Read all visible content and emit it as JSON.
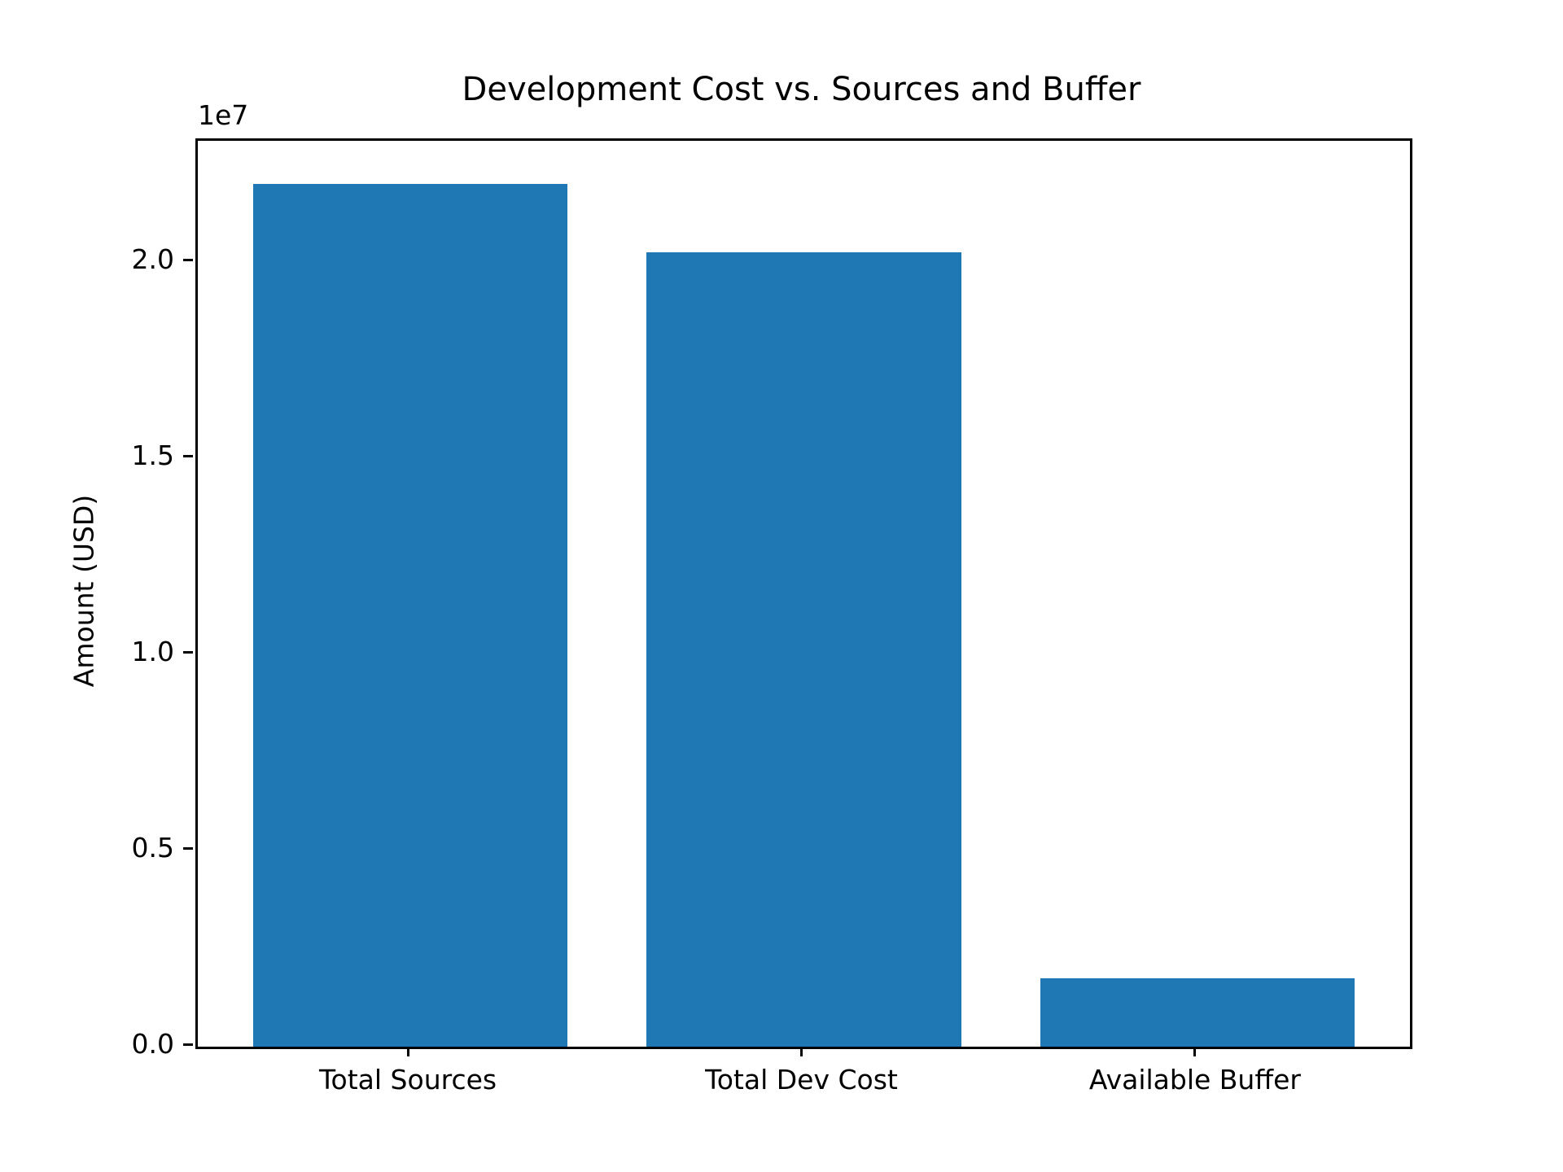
{
  "figure": {
    "background_color": "#ffffff",
    "text_color": "#000000"
  },
  "chart_data": {
    "type": "bar",
    "title": "Development Cost vs. Sources and Buffer",
    "xlabel": "",
    "ylabel": "Amount (USD)",
    "y_offset_text": "1e7",
    "categories": [
      "Total Sources",
      "Total Dev Cost",
      "Available Buffer"
    ],
    "values": [
      22000000,
      20250000,
      1750000
    ],
    "bar_color": "#1f77b4",
    "ylim": [
      0,
      23100000
    ],
    "yticks": [
      0,
      5000000,
      10000000,
      15000000,
      20000000
    ],
    "ytick_labels": [
      "0.0",
      "0.5",
      "1.0",
      "1.5",
      "2.0"
    ],
    "grid": false,
    "legend": null
  }
}
